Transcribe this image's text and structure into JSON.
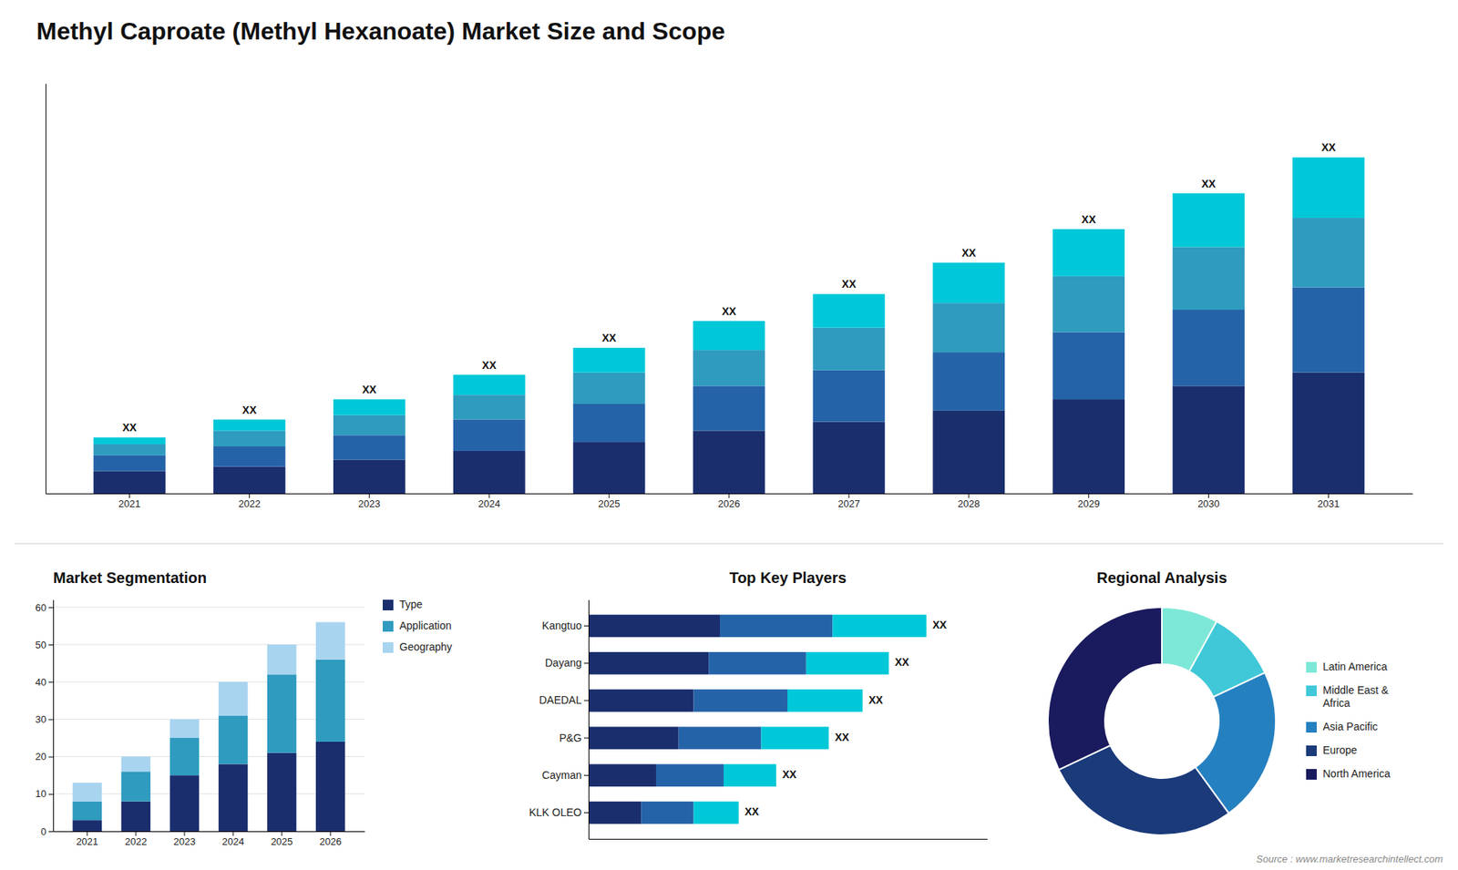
{
  "chart_data": [
    {
      "type": "bar",
      "title": "Methyl Caproate (Methyl Hexanoate) Market Size and Scope",
      "source": "Source : www.marketresearchintellect.com",
      "categories": [
        "2021",
        "2022",
        "2023",
        "2024",
        "2025",
        "2026",
        "2027",
        "2028",
        "2029",
        "2030",
        "2031"
      ],
      "series": [
        {
          "color": "#1a2e6e",
          "values": [
            1.0,
            1.2,
            1.5,
            1.9,
            2.3,
            2.8,
            3.2,
            3.7,
            4.2,
            4.8,
            5.4
          ]
        },
        {
          "color": "#2563a8",
          "values": [
            0.7,
            0.9,
            1.1,
            1.4,
            1.7,
            2.0,
            2.3,
            2.6,
            3.0,
            3.4,
            3.8
          ]
        },
        {
          "color": "#2e9bbf",
          "values": [
            0.5,
            0.7,
            0.9,
            1.1,
            1.4,
            1.6,
            1.9,
            2.2,
            2.5,
            2.8,
            3.1
          ]
        },
        {
          "color": "#00c8d8",
          "values": [
            0.3,
            0.5,
            0.7,
            0.9,
            1.1,
            1.3,
            1.5,
            1.8,
            2.1,
            2.4,
            2.7
          ]
        }
      ],
      "stacked": true,
      "ylim": [
        0,
        18.3
      ],
      "tick_labels": "x",
      "grid": false,
      "annotations": [
        {
          "text": "XX",
          "x": "2021"
        },
        {
          "text": "XX",
          "x": "2022"
        },
        {
          "text": "XX",
          "x": "2023"
        },
        {
          "text": "XX",
          "x": "2024"
        },
        {
          "text": "XX",
          "x": "2025"
        },
        {
          "text": "XX",
          "x": "2026"
        },
        {
          "text": "XX",
          "x": "2027"
        },
        {
          "text": "XX",
          "x": "2028"
        },
        {
          "text": "XX",
          "x": "2029"
        },
        {
          "text": "XX",
          "x": "2030"
        },
        {
          "text": "XX",
          "x": "2031"
        }
      ]
    },
    {
      "type": "bar",
      "title": "Market Segmentation",
      "categories": [
        "2021",
        "2022",
        "2023",
        "2024",
        "2025",
        "2026"
      ],
      "series": [
        {
          "name": "Type",
          "color": "#1a2e6e",
          "values": [
            3,
            8,
            15,
            18,
            21,
            24
          ]
        },
        {
          "name": "Application",
          "color": "#2e9bbf",
          "values": [
            5,
            8,
            10,
            13,
            21,
            22
          ]
        },
        {
          "name": "Geography",
          "color": "#a8d4f0",
          "values": [
            5,
            4,
            5,
            9,
            8,
            10
          ]
        }
      ],
      "stacked": true,
      "ylim": [
        0,
        62
      ],
      "yticks": [
        0,
        10,
        20,
        30,
        40,
        50,
        60
      ],
      "grid": true,
      "legend": "right"
    },
    {
      "type": "bar",
      "title": "Top Key Players",
      "orientation": "horizontal",
      "categories": [
        "Kangtuo",
        "Dayang",
        "DAEDAL",
        "P&G",
        "Cayman",
        "KLK OLEO"
      ],
      "series": [
        {
          "color": "#1a2e6e",
          "values": [
            35,
            32,
            28,
            24,
            18,
            14
          ]
        },
        {
          "color": "#2563a8",
          "values": [
            30,
            26,
            25,
            22,
            18,
            14
          ]
        },
        {
          "color": "#00c8d8",
          "values": [
            25,
            22,
            20,
            18,
            14,
            12
          ]
        }
      ],
      "stacked": true,
      "xlim": [
        0,
        106.2
      ],
      "tick_labels": "y",
      "grid": false,
      "annotations": [
        {
          "text": "XX",
          "y": "Kangtuo"
        },
        {
          "text": "XX",
          "y": "Dayang"
        },
        {
          "text": "XX",
          "y": "DAEDAL"
        },
        {
          "text": "XX",
          "y": "P&G"
        },
        {
          "text": "XX",
          "y": "Cayman"
        },
        {
          "text": "XX",
          "y": "KLK OLEO"
        }
      ]
    },
    {
      "type": "donut",
      "title": "Regional Analysis",
      "labels": [
        "Latin America",
        "Middle East &\nAfrica",
        "Asia Pacific",
        "Europe",
        "North America"
      ],
      "values": [
        8,
        10,
        22,
        28,
        32
      ],
      "colors": [
        "#7ee8d8",
        "#40c8d8",
        "#2580c0",
        "#1a3a7a",
        "#1a1a5e"
      ],
      "legend": "right"
    }
  ]
}
